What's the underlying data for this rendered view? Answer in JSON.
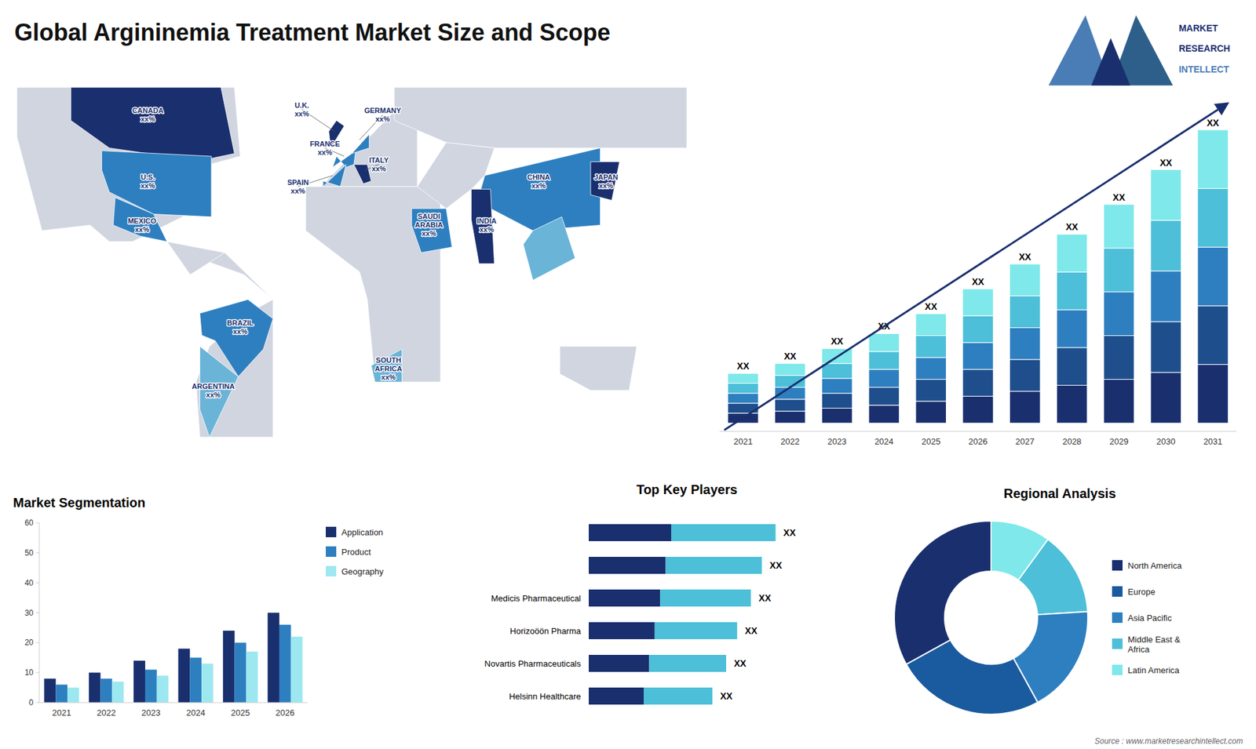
{
  "chart_data": [
    {
      "type": "map",
      "title": "Global Argininemia Treatment Market Size and Scope",
      "annotations": [
        "CANADA\nxx%",
        "U.S.\nxx%",
        "MEXICO\nxx%",
        "BRAZIL\nxx%",
        "ARGENTINA\nxx%",
        "U.K.\nxx%",
        "FRANCE\nxx%",
        "SPAIN\nxx%",
        "GERMANY\nxx%",
        "ITALY\nxx%",
        "SAUDI\nARABIA\nxx%",
        "SOUTH\nAFRICA\nxx%",
        "CHINA\nxx%",
        "INDIA\nxx%",
        "JAPAN\nxx%",
        "MARKET",
        "RESEARCH",
        "INTELLECT",
        "Source : www.marketresearchintellect.com"
      ]
    },
    {
      "type": "bar",
      "stacked": true,
      "categories": [
        "2021",
        "2022",
        "2023",
        "2024",
        "2025",
        "2026",
        "2027",
        "2028",
        "2029",
        "2030",
        "2031"
      ],
      "series": [
        {
          "color": "#1a2f6e",
          "values": [
            0.6,
            0.72,
            0.9,
            1.08,
            1.32,
            1.62,
            1.92,
            2.28,
            2.64,
            3.06,
            3.54
          ]
        },
        {
          "color": "#1e4f8c",
          "values": [
            0.6,
            0.72,
            0.9,
            1.08,
            1.32,
            1.62,
            1.92,
            2.28,
            2.64,
            3.06,
            3.54
          ]
        },
        {
          "color": "#2e7fc0",
          "values": [
            0.6,
            0.72,
            0.9,
            1.08,
            1.32,
            1.62,
            1.92,
            2.28,
            2.64,
            3.06,
            3.54
          ]
        },
        {
          "color": "#4dbfd8",
          "values": [
            0.6,
            0.72,
            0.9,
            1.08,
            1.32,
            1.62,
            1.92,
            2.28,
            2.64,
            3.06,
            3.54
          ]
        },
        {
          "color": "#7ee8ea",
          "values": [
            0.6,
            0.72,
            0.9,
            1.08,
            1.32,
            1.62,
            1.92,
            2.28,
            2.64,
            3.06,
            3.54
          ]
        }
      ],
      "ylim": [
        -0.5,
        21.2
      ],
      "tick_labels": "x",
      "annotations": [
        "XX"
      ]
    },
    {
      "type": "bar",
      "title": "Market Segmentation",
      "categories": [
        "2021",
        "2022",
        "2023",
        "2024",
        "2025",
        "2026"
      ],
      "series": [
        {
          "name": "Application",
          "color": "#1a2f6e",
          "values": [
            8,
            10,
            14,
            18,
            24,
            30
          ]
        },
        {
          "name": "Product",
          "color": "#2e7fc0",
          "values": [
            6,
            8,
            11,
            15,
            20,
            26
          ]
        },
        {
          "name": "Geography",
          "color": "#9de8f0",
          "values": [
            5,
            7,
            9,
            13,
            17,
            22
          ]
        }
      ],
      "ylim": [
        0,
        60
      ],
      "yticks": [
        0,
        10,
        20,
        30,
        40,
        50,
        60
      ],
      "legend": "right"
    },
    {
      "type": "bar",
      "title": "Top Key Players",
      "orientation": "horizontal",
      "stacked": true,
      "categories": [
        null,
        null,
        "Medicis Pharmaceutical",
        "Horizoöön Pharma",
        "Novartis Pharmaceuticals",
        "Helsinn Healthcare"
      ],
      "series": [
        {
          "color": "#1a2f6e",
          "values": [
            0.3,
            0.28,
            0.26,
            0.24,
            0.22,
            0.2
          ]
        },
        {
          "color": "#4dbfd8",
          "values": [
            0.38,
            0.35,
            0.33,
            0.3,
            0.28,
            0.25
          ]
        }
      ],
      "xlim": [
        0,
        1
      ],
      "tick_labels": "y",
      "annotations": [
        "XX"
      ]
    },
    {
      "type": "donut",
      "title": "Regional Analysis",
      "categories": [
        "Latin America",
        "Middle East &\nAfrica",
        "Asia Pacific",
        "Europe",
        "North America"
      ],
      "values": [
        0.1,
        0.14,
        0.18,
        0.25,
        0.33
      ],
      "colors": [
        "#7ee8ea",
        "#4dbfd8",
        "#2e7fc0",
        "#1a5a9e",
        "#1a2f6e"
      ],
      "legend": "right"
    }
  ]
}
